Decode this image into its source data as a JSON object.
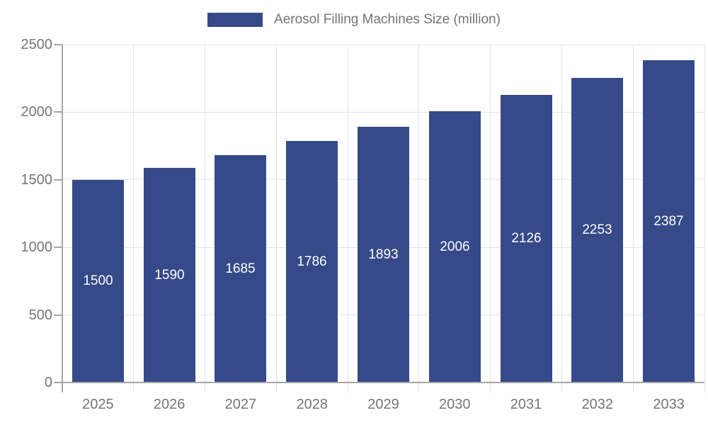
{
  "chart_data": {
    "type": "bar",
    "title": "",
    "legend": {
      "label": "Aerosol Filling Machines Size (million)",
      "position": "top-center"
    },
    "categories": [
      "2025",
      "2026",
      "2027",
      "2028",
      "2029",
      "2030",
      "2031",
      "2032",
      "2033"
    ],
    "series": [
      {
        "name": "Aerosol Filling Machines Size (million)",
        "values": [
          1500,
          1590,
          1685,
          1786,
          1893,
          2006,
          2126,
          2253,
          2387
        ]
      }
    ],
    "xlabel": "",
    "ylabel": "",
    "ylim": [
      0,
      2500
    ],
    "y_ticks": [
      0,
      500,
      1000,
      1500,
      2000,
      2500
    ],
    "grid": "on",
    "value_labels": "inside-center",
    "colors": {
      "bar": "#364a89",
      "value_label": "#ffffff",
      "gridline": "#e3e3e3",
      "axis_line": "#a6a6a6",
      "tick_text": "#757575",
      "legend_text": "#747474",
      "background": "#ffffff"
    }
  }
}
